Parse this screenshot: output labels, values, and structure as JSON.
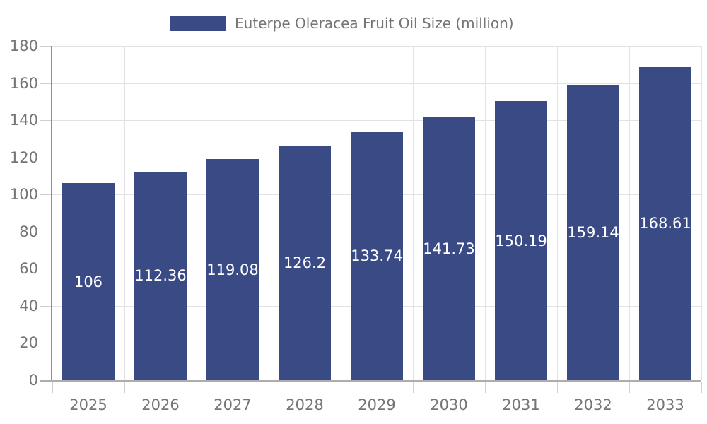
{
  "chart_data": {
    "type": "bar",
    "title": "",
    "legend": "Euterpe Oleracea Fruit Oil Size (million)",
    "legend_position": "top",
    "categories": [
      "2025",
      "2026",
      "2027",
      "2028",
      "2029",
      "2030",
      "2031",
      "2032",
      "2033"
    ],
    "values": [
      106,
      112.36,
      119.08,
      126.2,
      133.74,
      141.73,
      150.19,
      159.14,
      168.61
    ],
    "value_labels": [
      "106",
      "112.36",
      "119.08",
      "126.2",
      "133.74",
      "141.73",
      "150.19",
      "159.14",
      "168.61"
    ],
    "xlabel": "",
    "ylabel": "",
    "ylim": [
      0,
      180
    ],
    "y_ticks": [
      0,
      20,
      40,
      60,
      80,
      100,
      120,
      140,
      160,
      180
    ],
    "grid": true,
    "colors": {
      "bar": "#394A85",
      "grid": "#E2E2E5",
      "axis_y": "#8F8F8F",
      "axis_x": "#ADADAD",
      "tick": "#CFCFCF",
      "label_text": "#757575",
      "value_text": "#FFFFFF",
      "background": "#FFFFFF"
    }
  }
}
